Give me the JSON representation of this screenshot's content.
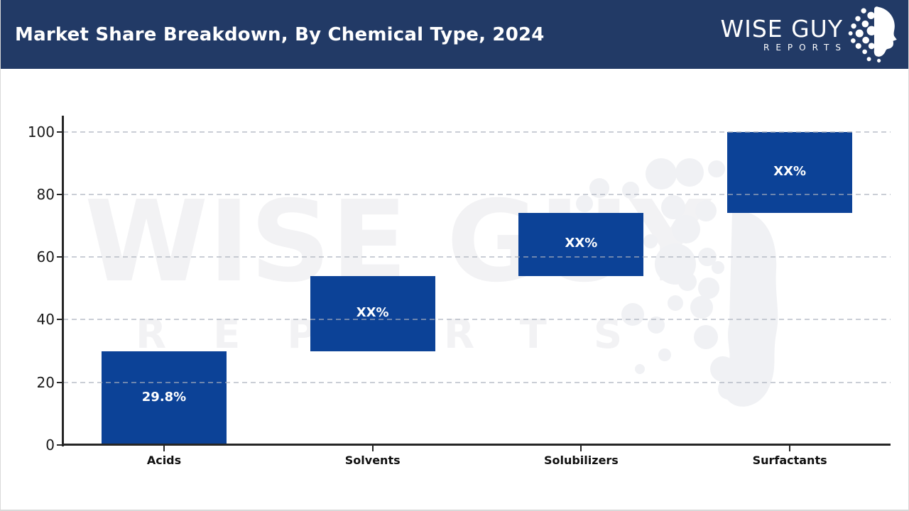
{
  "header": {
    "title": "Market Share Breakdown, By Chemical Type, 2024",
    "logo": {
      "line1": "WISE GUY",
      "line2": "REPORTS"
    }
  },
  "watermark": {
    "line1": "WISE GUY",
    "line2": "REPORTS"
  },
  "colors": {
    "header_bg": "#223a66",
    "bar": "#0c4297",
    "axis": "#262626",
    "grid": "#aab0bc",
    "bar_label": "#ffffff",
    "tick_label": "#1a1a1a",
    "watermark": "#f2f2f4",
    "page_border": "#d9d9d9"
  },
  "chart_data": {
    "type": "bar",
    "subtype": "waterfall",
    "title": "Market Share Breakdown, By Chemical Type, 2024",
    "categories": [
      "Acids",
      "Solvents",
      "Solubilizers",
      "Surfactants"
    ],
    "segments": [
      {
        "category": "Acids",
        "start": 0,
        "end": 29.8,
        "label": "29.8%"
      },
      {
        "category": "Solvents",
        "start": 29.8,
        "end": 54,
        "label": "XX%"
      },
      {
        "category": "Solubilizers",
        "start": 54,
        "end": 74,
        "label": "XX%"
      },
      {
        "category": "Surfactants",
        "start": 74,
        "end": 100,
        "label": "XX%"
      }
    ],
    "ylabel": "",
    "xlabel": "",
    "ylim": [
      0,
      105
    ],
    "yticks": [
      0,
      20,
      40,
      60,
      80,
      100
    ],
    "grid": "horizontal-dashed",
    "legend": "none"
  }
}
